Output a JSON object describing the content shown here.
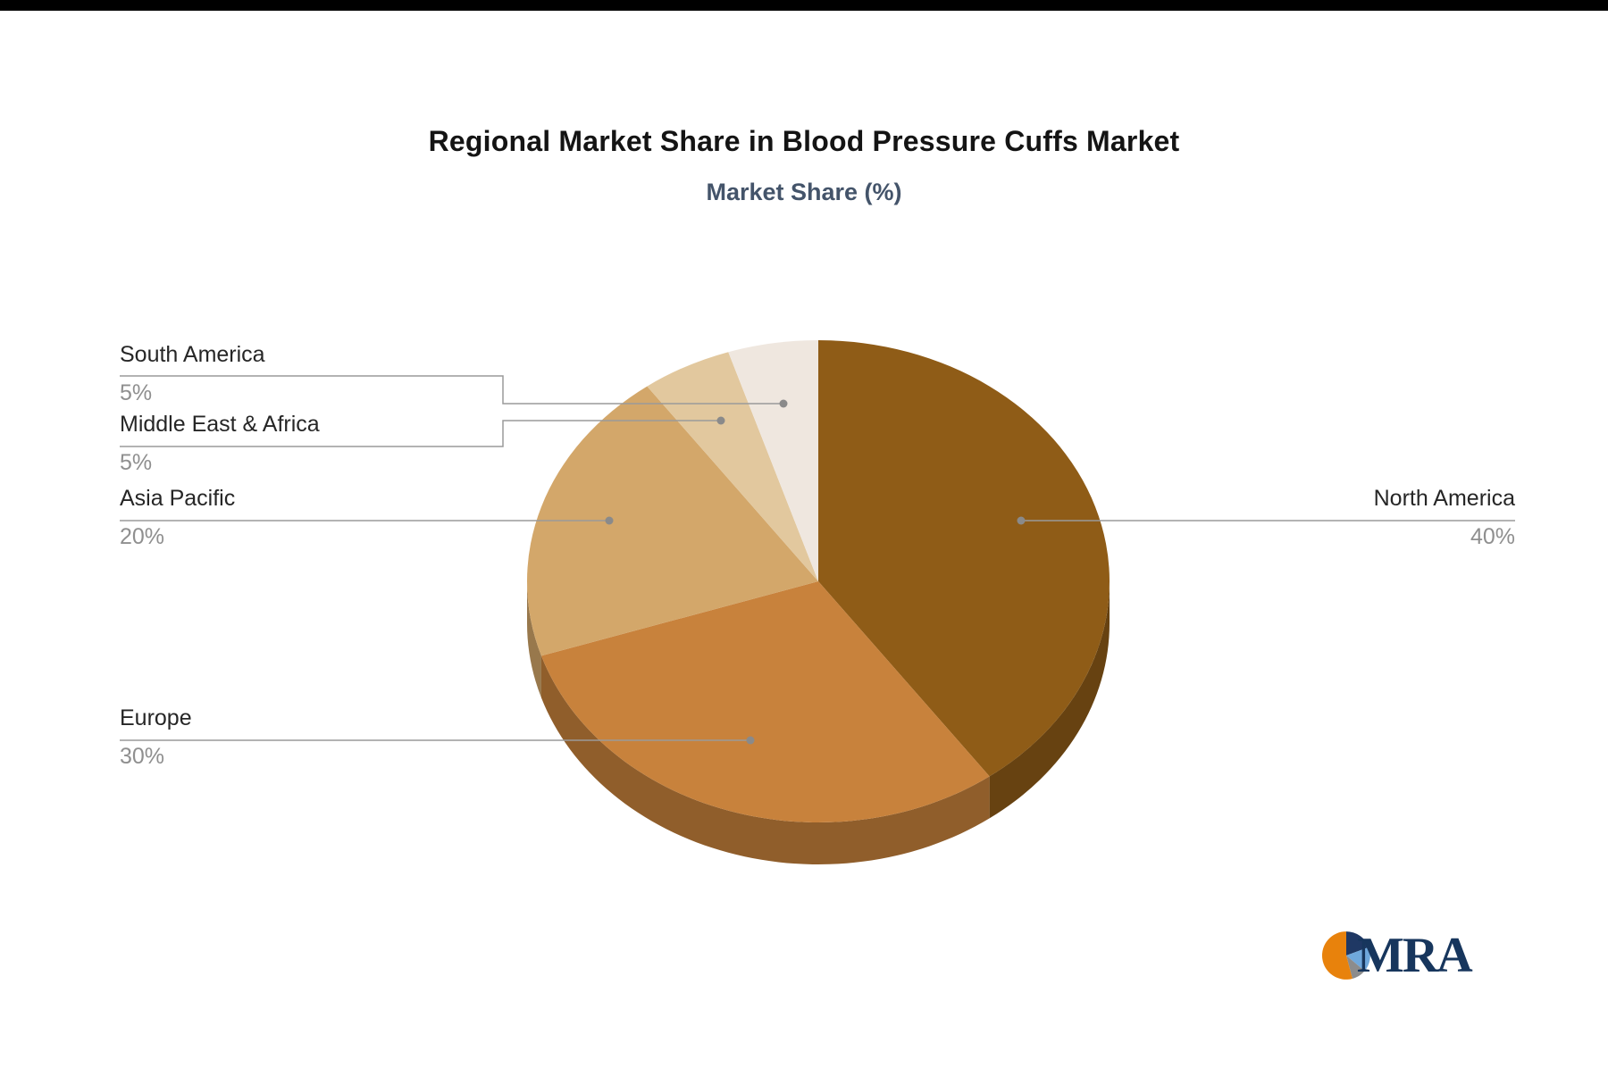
{
  "chart_data": {
    "type": "pie",
    "title": "Regional Market Share in Blood Pressure Cuffs Market",
    "subtitle": "Market Share (%)",
    "labels": [
      "North America",
      "Europe",
      "Asia Pacific",
      "Middle East & Africa",
      "South America"
    ],
    "values": [
      40,
      30,
      20,
      5,
      5
    ],
    "colors": [
      "#8F5C17",
      "#C8823C",
      "#D3A76A",
      "#E2C89E",
      "#EFE7DF"
    ],
    "start_angle_deg": 0,
    "direction": "clockwise",
    "style": "3d",
    "legend_position": "none",
    "leader_line_color": "#9a9a9a",
    "callouts": [
      {
        "label": "South America",
        "value_text": "5%"
      },
      {
        "label": "Middle East & Africa",
        "value_text": "5%"
      },
      {
        "label": "Asia Pacific",
        "value_text": "20%"
      },
      {
        "label": "Europe",
        "value_text": "30%"
      },
      {
        "label": "North America",
        "value_text": "40%"
      }
    ]
  },
  "logo": {
    "text": "MRA",
    "text_color": "#17365D",
    "icon": "pie-icon",
    "icon_colors": {
      "navy": "#1F3864",
      "blue": "#6FA8DC",
      "gray": "#8C8C8C",
      "orange": "#E8820C"
    }
  }
}
